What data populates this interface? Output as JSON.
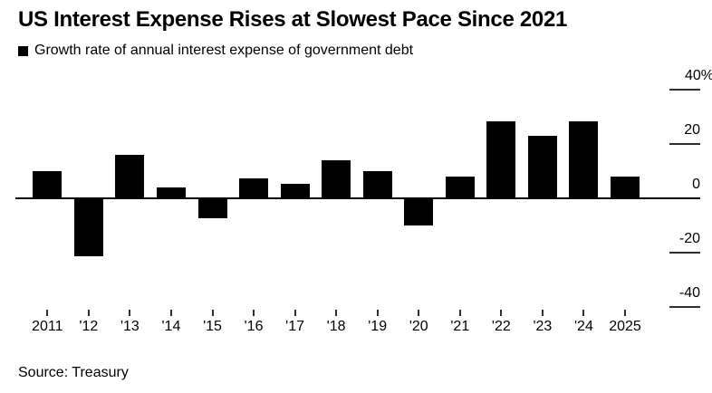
{
  "chart": {
    "title": "US Interest Expense Rises at Slowest Pace Since 2021",
    "legend": "Growth rate of annual interest expense of government debt",
    "source": "Source: Treasury"
  },
  "chart_data": {
    "type": "bar",
    "title": "US Interest Expense Rises at Slowest Pace Since 2021",
    "legend_entries": [
      "Growth rate of annual interest expense of government debt"
    ],
    "legend_position": "top-left",
    "source": "Source: Treasury",
    "categories": [
      "2011",
      "'12",
      "'13",
      "'14",
      "'15",
      "'16",
      "'17",
      "'18",
      "'19",
      "'20",
      "'21",
      "'22",
      "'23",
      "'24",
      "2025"
    ],
    "values": [
      10,
      -21,
      16,
      4,
      -7,
      7.5,
      5.5,
      14,
      10,
      -9.5,
      8,
      28.5,
      23,
      28.5,
      8
    ],
    "unit": "percent",
    "xlabel": "",
    "ylabel": "",
    "ylim": [
      -45,
      45
    ],
    "yticks": [
      {
        "value": 40,
        "label": "40%"
      },
      {
        "value": 20,
        "label": "20"
      },
      {
        "value": 0,
        "label": "0"
      },
      {
        "value": -20,
        "label": "-20"
      },
      {
        "value": -40,
        "label": "-40"
      }
    ],
    "grid": "off",
    "axis_style": "zero-baseline-with-right-tick-marks",
    "colors": {
      "bar": "#000000",
      "axis_line": "#000000",
      "tick": "#2e2e2e",
      "text": "#000000",
      "background": "#ffffff"
    }
  }
}
